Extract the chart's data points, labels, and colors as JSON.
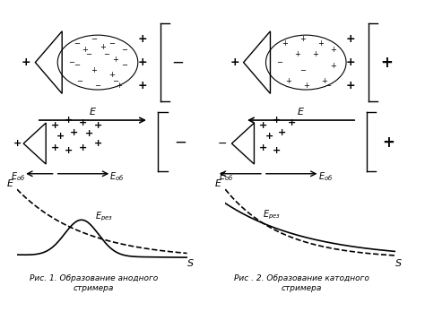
{
  "title": "",
  "fig1_caption": "Рис. 1. Образование анодного\nстримера",
  "fig2_caption": "Рис . 2. Образование катодного\nстримера",
  "background": "#ffffff",
  "text_color": "#000000",
  "minus_sign": "-",
  "plus_sign": "+",
  "E_label": "E",
  "S_label": "S",
  "E_rez_label": "$E_{рез}$"
}
